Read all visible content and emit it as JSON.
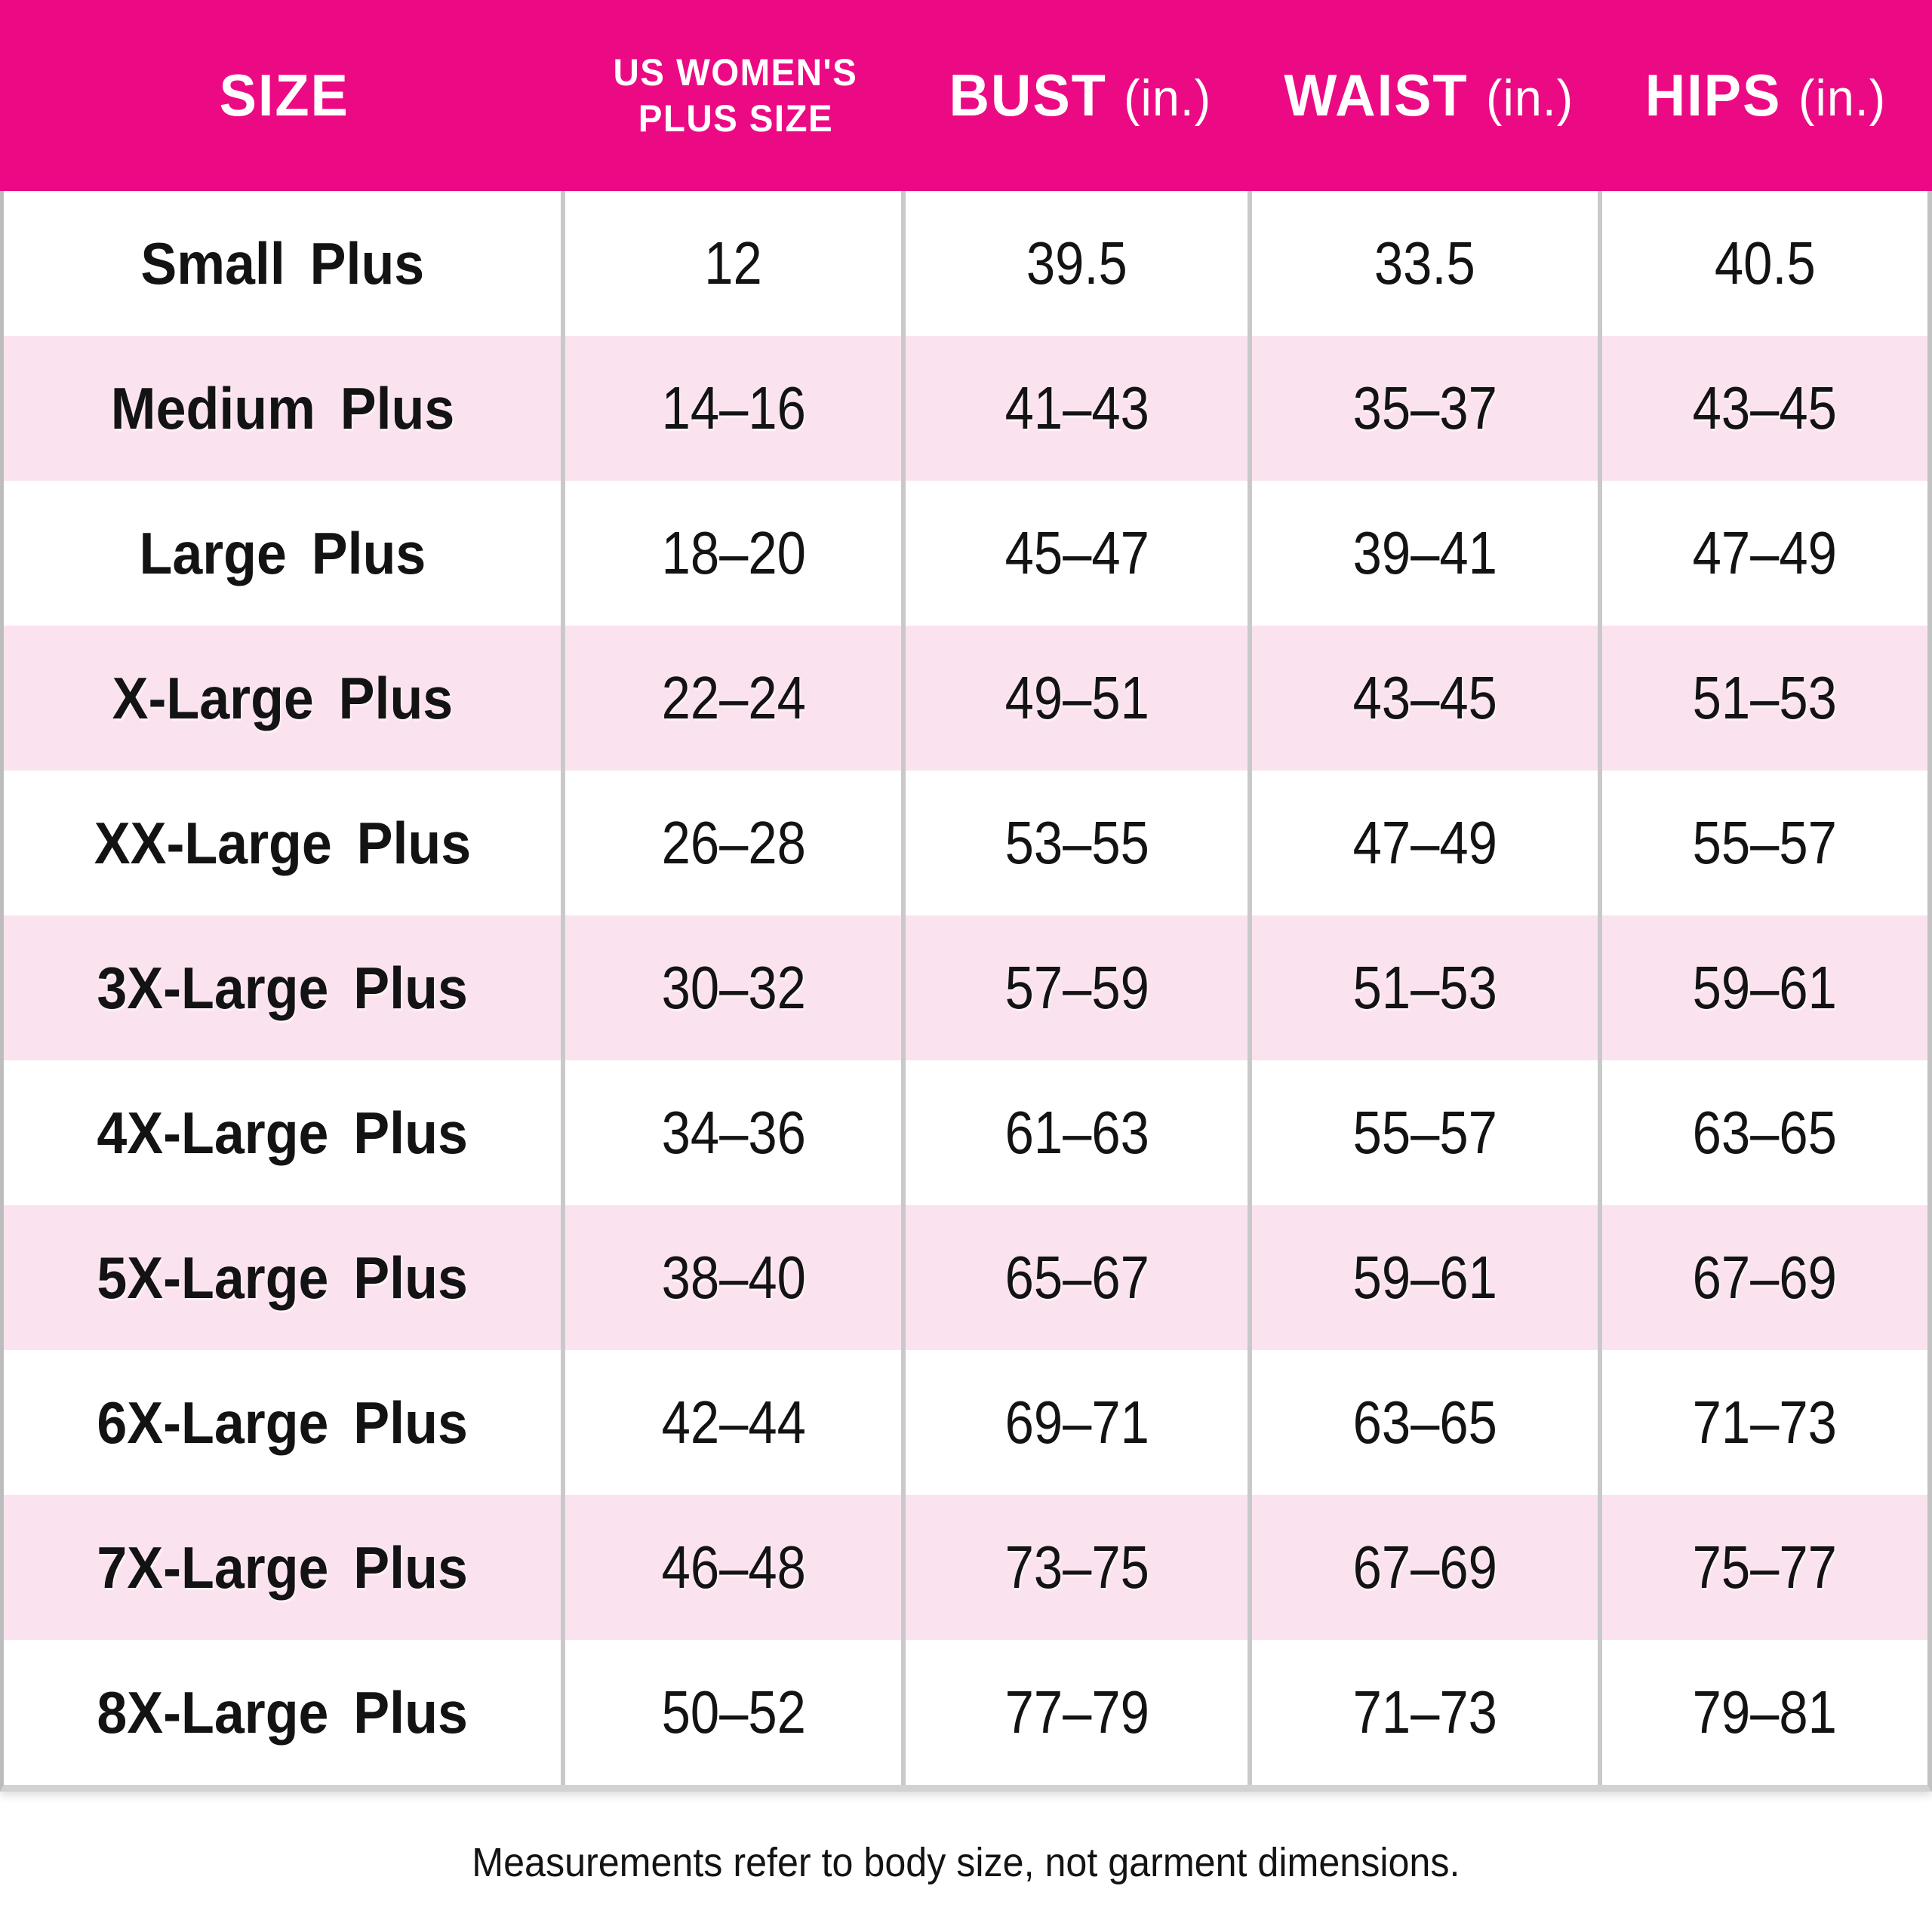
{
  "header": {
    "col1": "SIZE",
    "col2_line1": "US WOMEN'S",
    "col2_line2": "PLUS SIZE",
    "col3_name": "BUST",
    "col3_unit": "(in.)",
    "col4_name": "WAIST",
    "col4_unit": "(in.)",
    "col5_name": "HIPS",
    "col5_unit": "(in.)"
  },
  "footer": {
    "note": "Measurements refer to body size, not garment dimensions."
  },
  "colors": {
    "header_bg": "#EC0A84",
    "header_text": "#FFFFFF",
    "alt_row_bg": "#FBE2EF",
    "row_bg": "#FFFFFF",
    "divider": "#C9C9C9",
    "side_border": "#BDBDBD",
    "bottom_border": "#D2D2D2",
    "body_text": "#131313"
  },
  "chart_data": {
    "type": "table",
    "title": "Women's plus size chart",
    "columns": [
      "SIZE",
      "US WOMEN'S PLUS SIZE",
      "BUST (in.)",
      "WAIST (in.)",
      "HIPS (in.)"
    ],
    "rows": [
      {
        "size": "Small Plus",
        "us": "12",
        "bust": "39.5",
        "waist": "33.5",
        "hips": "40.5"
      },
      {
        "size": "Medium Plus",
        "us": "14–16",
        "bust": "41–43",
        "waist": "35–37",
        "hips": "43–45"
      },
      {
        "size": "Large Plus",
        "us": "18–20",
        "bust": "45–47",
        "waist": "39–41",
        "hips": "47–49"
      },
      {
        "size": "X-Large Plus",
        "us": "22–24",
        "bust": "49–51",
        "waist": "43–45",
        "hips": "51–53"
      },
      {
        "size": "XX-Large Plus",
        "us": "26–28",
        "bust": "53–55",
        "waist": "47–49",
        "hips": "55–57"
      },
      {
        "size": "3X-Large Plus",
        "us": "30–32",
        "bust": "57–59",
        "waist": "51–53",
        "hips": "59–61"
      },
      {
        "size": "4X-Large Plus",
        "us": "34–36",
        "bust": "61–63",
        "waist": "55–57",
        "hips": "63–65"
      },
      {
        "size": "5X-Large Plus",
        "us": "38–40",
        "bust": "65–67",
        "waist": "59–61",
        "hips": "67–69"
      },
      {
        "size": "6X-Large Plus",
        "us": "42–44",
        "bust": "69–71",
        "waist": "63–65",
        "hips": "71–73"
      },
      {
        "size": "7X-Large Plus",
        "us": "46–48",
        "bust": "73–75",
        "waist": "67–69",
        "hips": "75–77"
      },
      {
        "size": "8X-Large Plus",
        "us": "50–52",
        "bust": "77–79",
        "waist": "71–73",
        "hips": "79–81"
      }
    ]
  }
}
